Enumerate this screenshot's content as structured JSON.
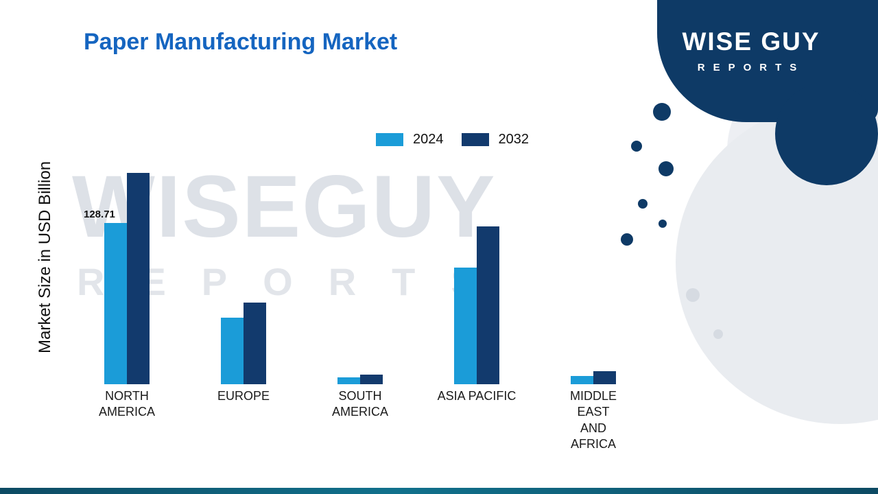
{
  "header": {
    "title": "Paper Manufacturing Market"
  },
  "logo": {
    "line1": "WISE GUY",
    "line2": "REPORTS"
  },
  "watermark": {
    "line1": "WISEGUY",
    "line2": "REPORTS"
  },
  "chart_data": {
    "type": "bar",
    "title": "Paper Manufacturing Market",
    "categories": [
      "NORTH AMERICA",
      "EUROPE",
      "SOUTH AMERICA",
      "ASIA PACIFIC",
      "MIDDLE EAST AND AFRICA"
    ],
    "series": [
      {
        "name": "2024",
        "color": "#1b9cd8",
        "values": [
          128.71,
          53,
          5.5,
          93,
          6.5
        ]
      },
      {
        "name": "2032",
        "color": "#123a6d",
        "values": [
          169,
          65,
          7.5,
          126,
          10.5
        ]
      }
    ],
    "xlabel": "",
    "ylabel": "Market Size in USD Billion",
    "ylim": [
      0,
      170
    ],
    "grid": false,
    "legend_position": "top",
    "annotations": [
      {
        "text": "128.71",
        "target": "NORTH AMERICA 2024"
      }
    ]
  },
  "colors": {
    "title": "#1565c0",
    "series_2024": "#1b9cd8",
    "series_2032": "#123a6d",
    "logo_background": "#0e3a66"
  }
}
